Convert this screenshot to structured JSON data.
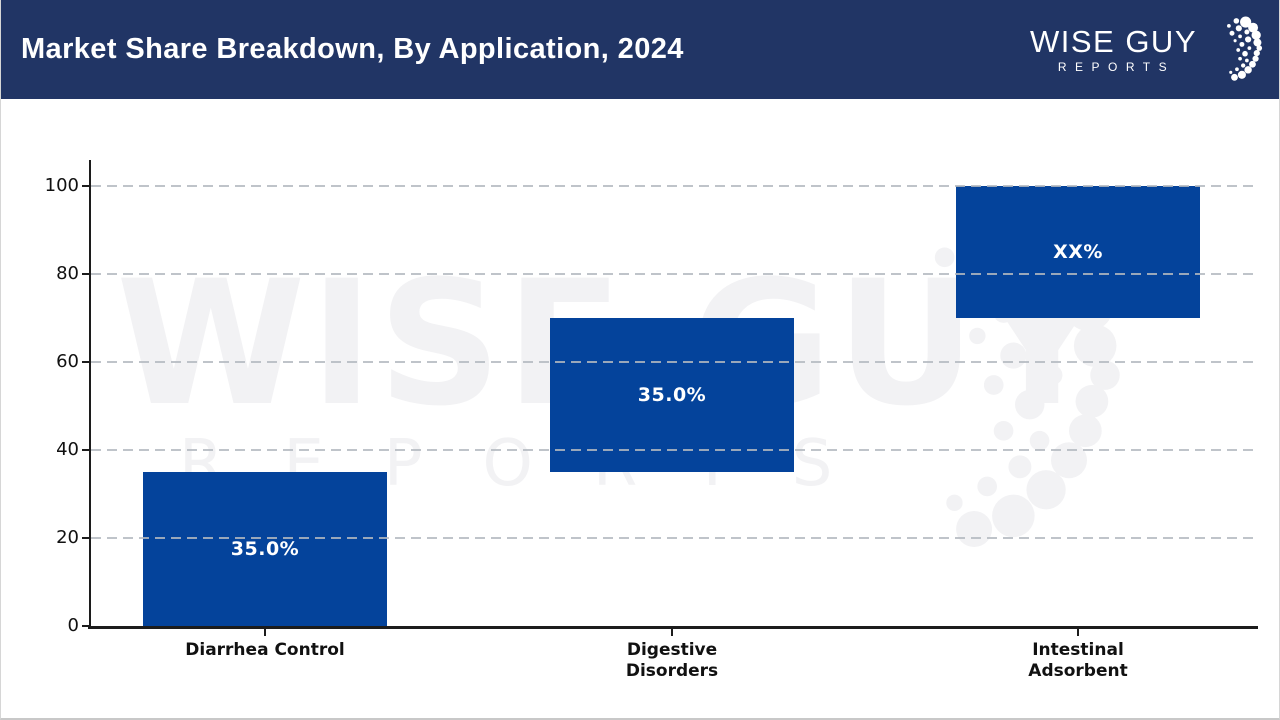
{
  "header": {
    "title": "Market Share Breakdown, By Application, 2024",
    "logo": {
      "primary": "WISE GUY",
      "secondary": "REPORTS"
    }
  },
  "watermark": {
    "primary": "WISE GUY",
    "secondary": "REPORTS"
  },
  "chart_data": {
    "type": "bar",
    "subtype": "floating-segment cumulative (waterfall-style market share)",
    "title": "Market Share Breakdown, By Application, 2024",
    "categories": [
      "Diarrhea Control",
      "Digestive Disorders",
      "Intestinal Adsorbent"
    ],
    "category_label_lines": [
      [
        "Diarrhea Control"
      ],
      [
        "Digestive",
        "Disorders"
      ],
      [
        "Intestinal",
        "Adsorbent"
      ]
    ],
    "segments": [
      {
        "category": "Diarrhea Control",
        "start": 0,
        "end": 35,
        "label": "35.0%"
      },
      {
        "category": "Digestive Disorders",
        "start": 35,
        "end": 70,
        "label": "35.0%"
      },
      {
        "category": "Intestinal Adsorbent",
        "start": 70,
        "end": 100,
        "label": "XX%"
      }
    ],
    "values": [
      35,
      35,
      30
    ],
    "labels": [
      "35.0%",
      "35.0%",
      "XX%"
    ],
    "ylim": [
      0,
      100
    ],
    "yticks": [
      0,
      20,
      40,
      60,
      80,
      100
    ],
    "grid": "horizontal dashed",
    "legend": "none",
    "xlabel": "",
    "ylabel": ""
  },
  "colors": {
    "header_bg": "#213565",
    "bar": "#04439b",
    "grid": "#c3c7cd",
    "axis": "#1c1c1c",
    "watermark": "#f2f2f4",
    "bar_label": "#ffffff"
  }
}
